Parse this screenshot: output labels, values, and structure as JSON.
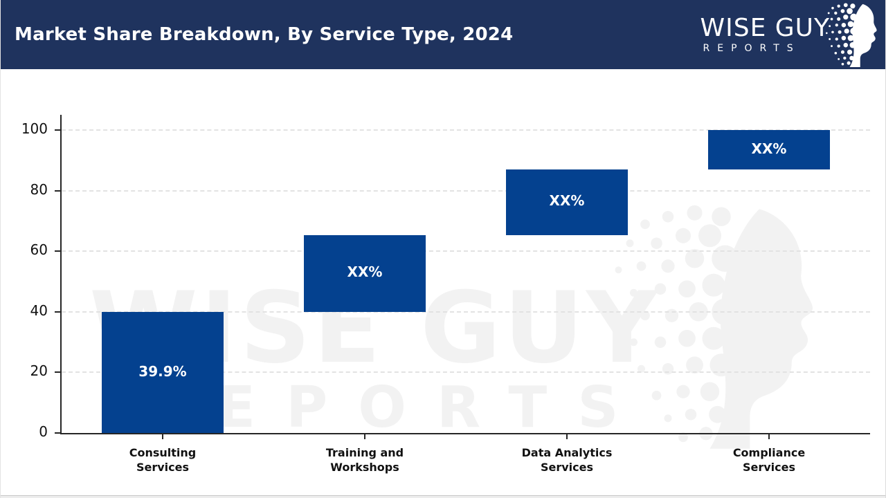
{
  "header": {
    "title": "Market Share Breakdown, By Service Type, 2024",
    "logo": {
      "line1": "WISE GUY",
      "line2": "REPORTS"
    }
  },
  "watermark": {
    "line1": "WISE GUY",
    "line2": "REPORTS"
  },
  "colors": {
    "header_bg": "#1f335e",
    "bar": "#04418f",
    "bar_label": "#ffffff",
    "grid": "#e2e2e2",
    "axis": "#262626",
    "tick_text": "#111111",
    "watermark": "#f2f2f2"
  },
  "chart_data": {
    "type": "bar",
    "variant": "waterfall",
    "title": "Market Share Breakdown, By Service Type, 2024",
    "xlabel": "",
    "ylabel": "",
    "categories": [
      [
        "Consulting",
        "Services"
      ],
      [
        "Training and",
        "Workshops"
      ],
      [
        "Data Analytics",
        "Services"
      ],
      [
        "Compliance",
        "Services"
      ]
    ],
    "segments": [
      {
        "name": "Consulting Services",
        "start": 0,
        "end": 39.9,
        "value": 39.9,
        "label": "39.9%"
      },
      {
        "name": "Training and Workshops",
        "start": 39.9,
        "end": 65.4,
        "value": 25.5,
        "label": "XX%"
      },
      {
        "name": "Data Analytics Services",
        "start": 65.4,
        "end": 86.9,
        "value": 21.5,
        "label": "XX%"
      },
      {
        "name": "Compliance Services",
        "start": 86.9,
        "end": 99.9,
        "value": 13.0,
        "label": "XX%"
      }
    ],
    "yticks": [
      0,
      20,
      40,
      60,
      80,
      100
    ],
    "ylim": [
      0,
      105
    ],
    "grid": "horizontal-dashed",
    "legend": null,
    "bar_color": "#04418f"
  }
}
